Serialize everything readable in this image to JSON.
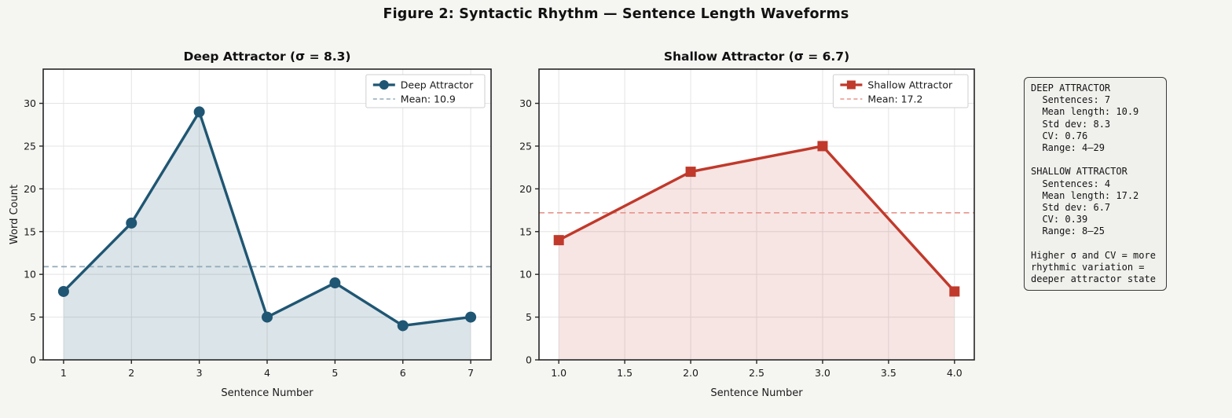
{
  "figure_title": "Figure 2: Syntactic Rhythm — Sentence Length Waveforms",
  "colors": {
    "background": "#f5f5f2",
    "plot_background": "#ffffff",
    "grid": "#e4e4e4",
    "spine": "#262626",
    "legend_border": "#cfcfcf"
  },
  "chart_data": [
    {
      "type": "line",
      "title": "Deep Attractor (σ = 8.3)",
      "series_name": "Deep Attractor",
      "x": [
        1,
        2,
        3,
        4,
        5,
        6,
        7
      ],
      "values": [
        8,
        16,
        29,
        5,
        9,
        4,
        5
      ],
      "mean": 10.9,
      "legend": [
        "Deep Attractor",
        "Mean: 10.9"
      ],
      "legend_loc": "upper right",
      "xlabel": "Sentence Number",
      "ylabel": "Word Count",
      "xlim": [
        0.7,
        7.3
      ],
      "ylim": [
        0,
        34
      ],
      "grid": true,
      "marker": "circle",
      "xticks": [
        {
          "v": 1,
          "label": "1"
        },
        {
          "v": 2,
          "label": "2"
        },
        {
          "v": 3,
          "label": "3"
        },
        {
          "v": 4,
          "label": "4"
        },
        {
          "v": 5,
          "label": "5"
        },
        {
          "v": 6,
          "label": "6"
        },
        {
          "v": 7,
          "label": "7"
        }
      ],
      "yticks": [
        {
          "v": 0,
          "label": "0"
        },
        {
          "v": 5,
          "label": "5"
        },
        {
          "v": 10,
          "label": "10"
        },
        {
          "v": 15,
          "label": "15"
        },
        {
          "v": 20,
          "label": "20"
        },
        {
          "v": 25,
          "label": "25"
        },
        {
          "v": 30,
          "label": "30"
        }
      ],
      "colors": {
        "line": "#1f5673",
        "fill": "rgba(31,86,115,0.16)",
        "mean": "#92aab9"
      }
    },
    {
      "type": "line",
      "title": "Shallow Attractor (σ = 6.7)",
      "series_name": "Shallow Attractor",
      "x": [
        1,
        2,
        3,
        4
      ],
      "values": [
        14,
        22,
        25,
        8
      ],
      "mean": 17.2,
      "legend": [
        "Shallow Attractor",
        "Mean: 17.2"
      ],
      "legend_loc": "upper right",
      "xlabel": "Sentence Number",
      "ylabel": "",
      "xlim": [
        0.85,
        4.15
      ],
      "ylim": [
        0,
        34
      ],
      "grid": true,
      "marker": "square",
      "xticks": [
        {
          "v": 1,
          "label": "1.0"
        },
        {
          "v": 1.5,
          "label": "1.5"
        },
        {
          "v": 2,
          "label": "2.0"
        },
        {
          "v": 2.5,
          "label": "2.5"
        },
        {
          "v": 3,
          "label": "3.0"
        },
        {
          "v": 3.5,
          "label": "3.5"
        },
        {
          "v": 4,
          "label": "4.0"
        }
      ],
      "yticks": [
        {
          "v": 0,
          "label": "0"
        },
        {
          "v": 5,
          "label": "5"
        },
        {
          "v": 10,
          "label": "10"
        },
        {
          "v": 15,
          "label": "15"
        },
        {
          "v": 20,
          "label": "20"
        },
        {
          "v": 25,
          "label": "25"
        },
        {
          "v": 30,
          "label": "30"
        }
      ],
      "colors": {
        "line": "#c0392b",
        "fill": "rgba(192,57,43,0.13)",
        "mean": "#e5958b"
      }
    }
  ],
  "stats_panel": {
    "text": "DEEP ATTRACTOR\n  Sentences: 7\n  Mean length: 10.9\n  Std dev: 8.3\n  CV: 0.76\n  Range: 4–29\n\nSHALLOW ATTRACTOR\n  Sentences: 4\n  Mean length: 17.2\n  Std dev: 6.7\n  CV: 0.39\n  Range: 8–25\n\nHigher σ and CV = more\nrhythmic variation =\ndeeper attractor state"
  }
}
